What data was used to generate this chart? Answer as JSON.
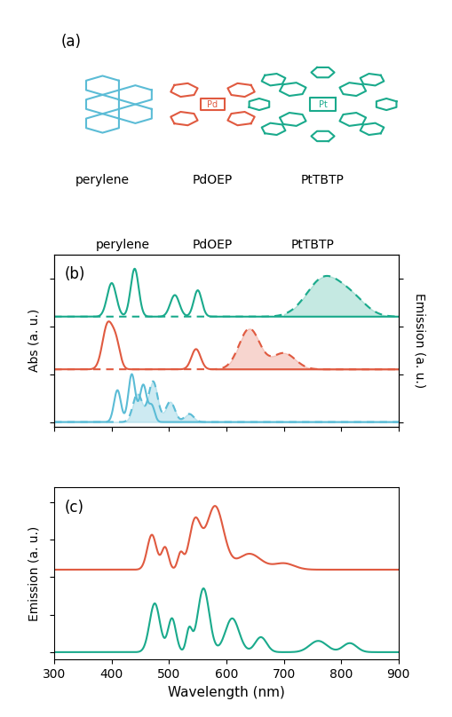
{
  "colors": {
    "teal": "#1aaa8c",
    "red": "#e05a40",
    "blue": "#5bbcd6",
    "light_teal": "#1aaa8c",
    "light_red": "#e05a40",
    "light_blue": "#5bbcd6"
  },
  "panel_b_xrange": [
    300,
    900
  ],
  "panel_c_xrange": [
    300,
    900
  ],
  "xlabel": "Wavelength (nm)",
  "ylabel_b_left": "Abs (a. u.)",
  "ylabel_b_right": "Emission (a. u.)",
  "ylabel_c": "Emission (a. u.)",
  "label_a": "(a)",
  "label_b": "(b)",
  "label_c": "(c)",
  "perylene_label": "perylene",
  "PdOEP_label": "PdOEP",
  "PtTBTP_label": "PtTBTP"
}
